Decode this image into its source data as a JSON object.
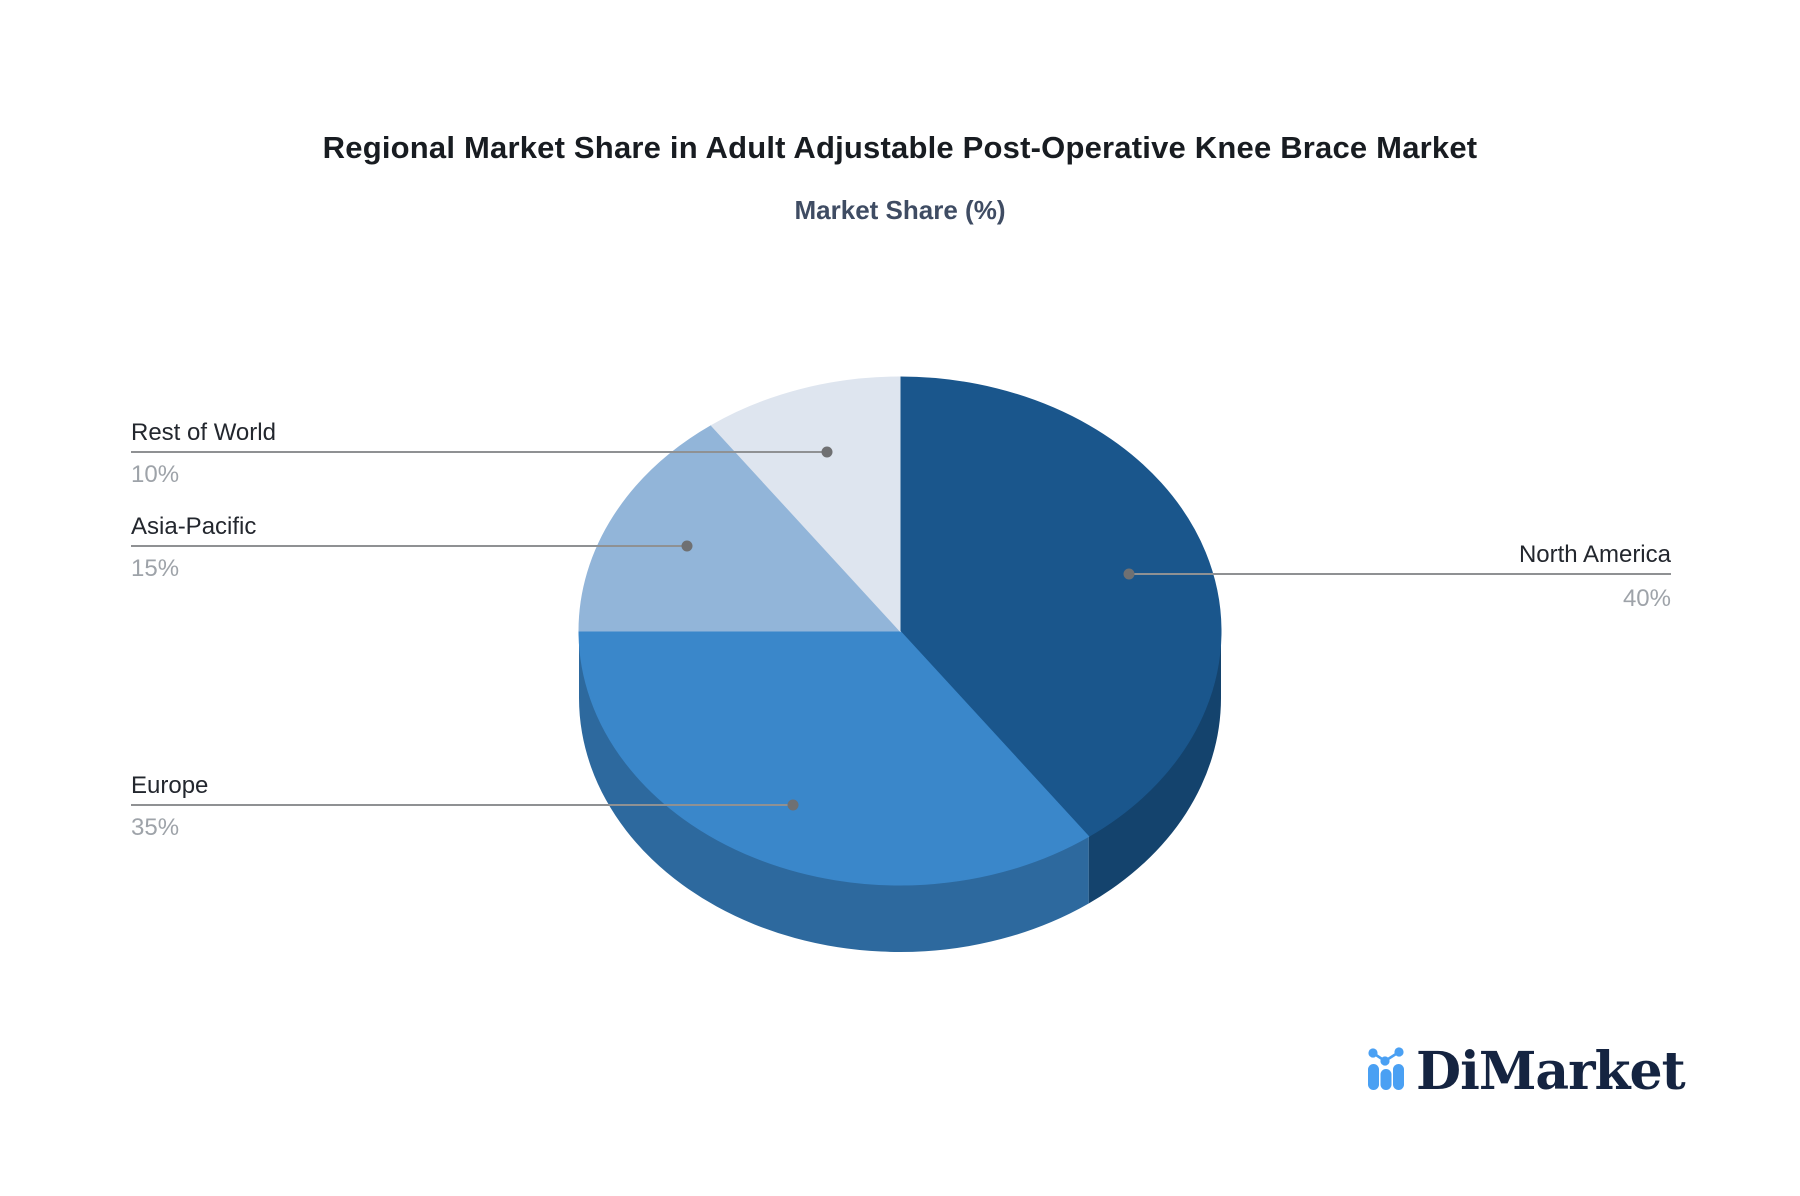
{
  "header": {
    "title": "Regional Market Share in Adult Adjustable Post-Operative Knee Brace Market",
    "subtitle": "Market Share (%)"
  },
  "chart_data": {
    "type": "pie",
    "style": "3d",
    "title": "Regional Market Share in Adult Adjustable Post-Operative Knee Brace Market",
    "subtitle": "Market Share (%)",
    "unit": "%",
    "labels": [
      "North America",
      "Europe",
      "Asia-Pacific",
      "Rest of World"
    ],
    "values": [
      40,
      35,
      15,
      10
    ],
    "display_values": [
      "40%",
      "35%",
      "15%",
      "10%"
    ],
    "colors": [
      "#1A568C",
      "#3A87CA",
      "#92B5D9",
      "#DEE5EF"
    ],
    "start_angle_deg": 0,
    "direction": "clockwise",
    "legend_position": "callout-labels",
    "leader_line_color": "#8f9193",
    "leader_dot_color": "#6f7072"
  },
  "callouts": {
    "north_america": {
      "label": "North America",
      "value": "40%"
    },
    "europe": {
      "label": "Europe",
      "value": "35%"
    },
    "asia_pacific": {
      "label": "Asia-Pacific",
      "value": "15%"
    },
    "rest_of_world": {
      "label": "Rest of World",
      "value": "10%"
    }
  },
  "branding": {
    "logo_text": "DiMarket",
    "logo_icon": "bar-chart-trend-icon",
    "logo_icon_color": "#4AA0F3",
    "logo_text_color": "#152441"
  }
}
